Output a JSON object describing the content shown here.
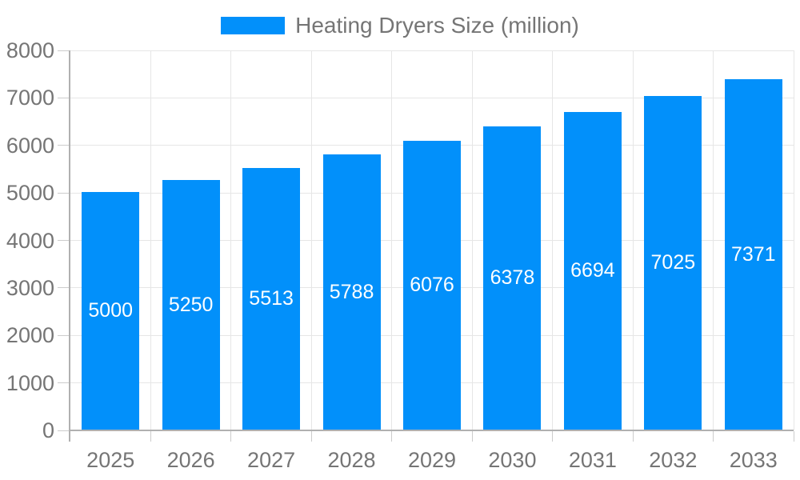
{
  "chart_data": {
    "type": "bar",
    "title": "Heating Dryers Size (million)",
    "categories": [
      "2025",
      "2026",
      "2027",
      "2028",
      "2029",
      "2030",
      "2031",
      "2032",
      "2033"
    ],
    "series": [
      {
        "name": "Heating Dryers Size (million)",
        "values": [
          5000,
          5250,
          5513,
          5788,
          6076,
          6378,
          6694,
          7025,
          7371
        ]
      }
    ],
    "bar_value_labels": [
      "5000",
      "5250",
      "5513",
      "5788",
      "6076",
      "6378",
      "6694",
      "7025",
      "7371"
    ],
    "xlabel": "",
    "ylabel": "",
    "ylim": [
      0,
      8000
    ],
    "yticks": [
      0,
      1000,
      2000,
      3000,
      4000,
      5000,
      6000,
      7000,
      8000
    ],
    "grid": true,
    "legend_position": "top"
  },
  "legend": {
    "label": "Heating Dryers Size (million)"
  },
  "colors": {
    "bar": "#0290fa",
    "grid": "#e6e6e6",
    "axis": "#b0b0b0",
    "tick": "#cccccc",
    "text": "#757575",
    "bar_label": "#ffffff",
    "background": "#ffffff"
  }
}
